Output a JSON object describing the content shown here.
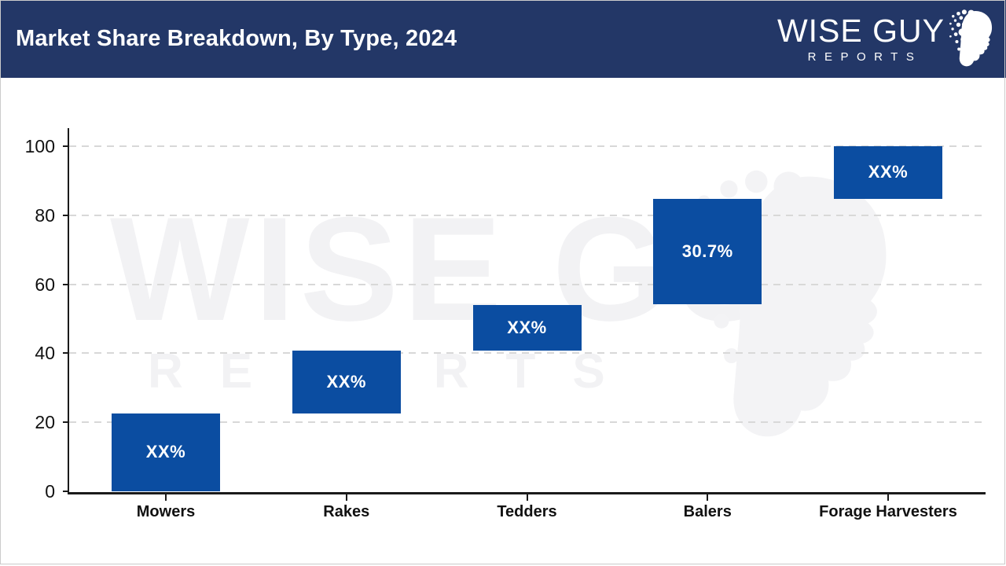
{
  "header": {
    "title": "Market Share Breakdown, By Type, 2024"
  },
  "logo": {
    "line1": "WISE GUY",
    "line2": "REPORTS"
  },
  "watermark": {
    "line1": "WISE GUY",
    "line2": "REPORTS"
  },
  "colors": {
    "header_bg": "#233767",
    "bar": "#0b4da1",
    "grid": "#d8d8d8",
    "axis": "#1a1a1a",
    "watermark": "#f2f2f4"
  },
  "chart_data": {
    "type": "bar",
    "subtype": "waterfall",
    "title": "Market Share Breakdown, By Type, 2024",
    "xlabel": "",
    "ylabel": "",
    "categories": [
      "Mowers",
      "Rakes",
      "Tedders",
      "Balers",
      "Forage Harvesters"
    ],
    "segments": [
      {
        "category": "Mowers",
        "label": "XX%",
        "start": 0,
        "end": 22.6
      },
      {
        "category": "Rakes",
        "label": "XX%",
        "start": 22.6,
        "end": 40.7
      },
      {
        "category": "Tedders",
        "label": "XX%",
        "start": 40.7,
        "end": 54.1
      },
      {
        "category": "Balers",
        "label": "30.7%",
        "start": 54.1,
        "end": 84.8
      },
      {
        "category": "Forage Harvesters",
        "label": "XX%",
        "start": 84.8,
        "end": 100
      }
    ],
    "yticks": [
      0,
      20,
      40,
      60,
      80,
      100
    ],
    "ylim": [
      0,
      105
    ],
    "grid": "horizontal-dashed",
    "legend": "none",
    "bar_color": "#0b4da1"
  }
}
